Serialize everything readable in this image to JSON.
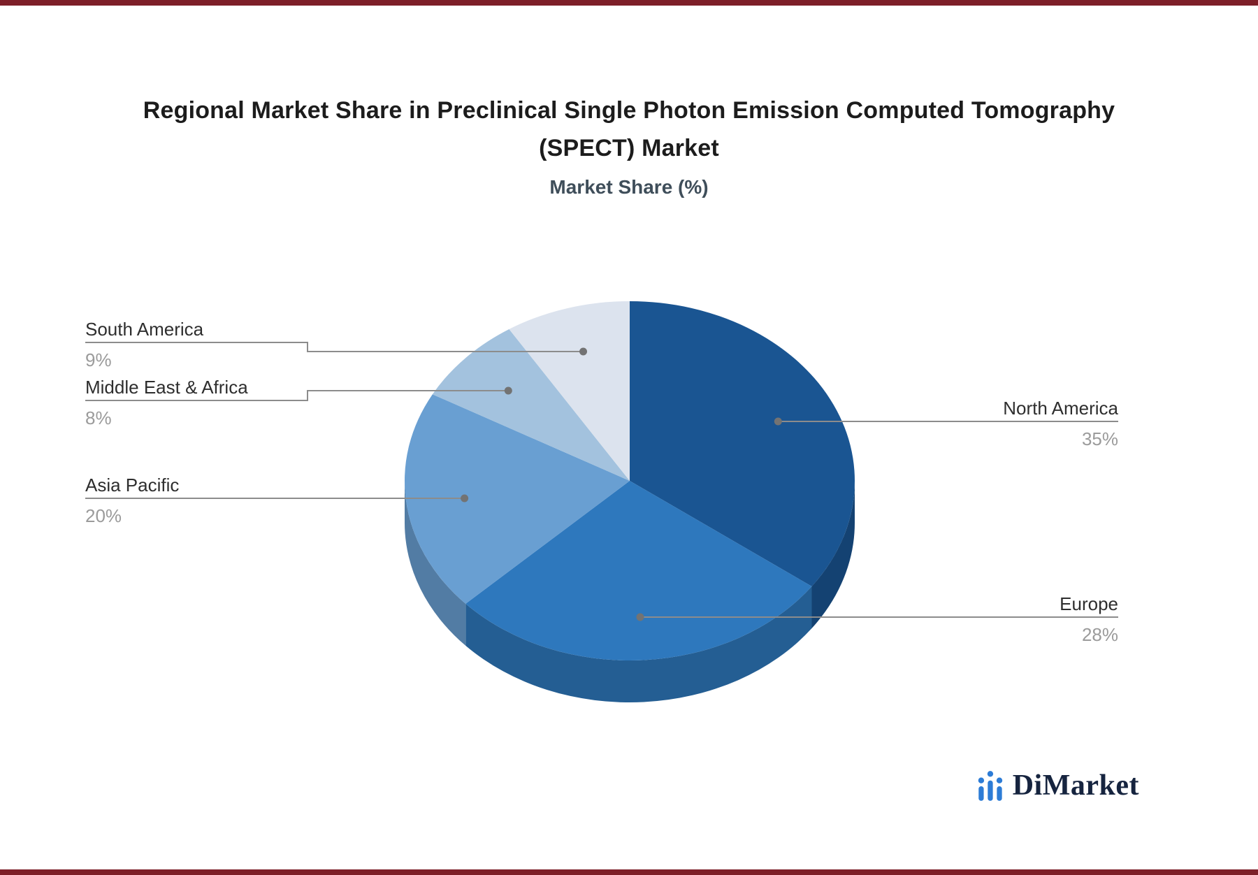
{
  "header": {
    "title_lines": [
      "Regional Market Share in Preclinical Single Photon Emission Computed Tomography",
      "(SPECT) Market"
    ],
    "subtitle": "Market Share (%)"
  },
  "chart_data": {
    "type": "pie",
    "style": "3d",
    "title": "Regional Market Share in Preclinical Single Photon Emission Computed Tomography (SPECT) Market",
    "subtitle": "Market Share (%)",
    "unit": "%",
    "start_angle_deg": 90,
    "direction": "clockwise",
    "legend": "none",
    "series": [
      {
        "name": "North America",
        "value": 35,
        "color": "#1a5592"
      },
      {
        "name": "Europe",
        "value": 28,
        "color": "#2e78bd"
      },
      {
        "name": "Asia Pacific",
        "value": 20,
        "color": "#699fd2"
      },
      {
        "name": "Middle East & Africa",
        "value": 8,
        "color": "#a3c2de"
      },
      {
        "name": "South America",
        "value": 9,
        "color": "#dce3ee"
      }
    ]
  },
  "logo": {
    "text": "DiMarket",
    "icon": "bar-chart-icon",
    "text_color": "#16243f",
    "icon_color": "#2d7cd6"
  },
  "page": {
    "border_color": "#7d1f28"
  }
}
